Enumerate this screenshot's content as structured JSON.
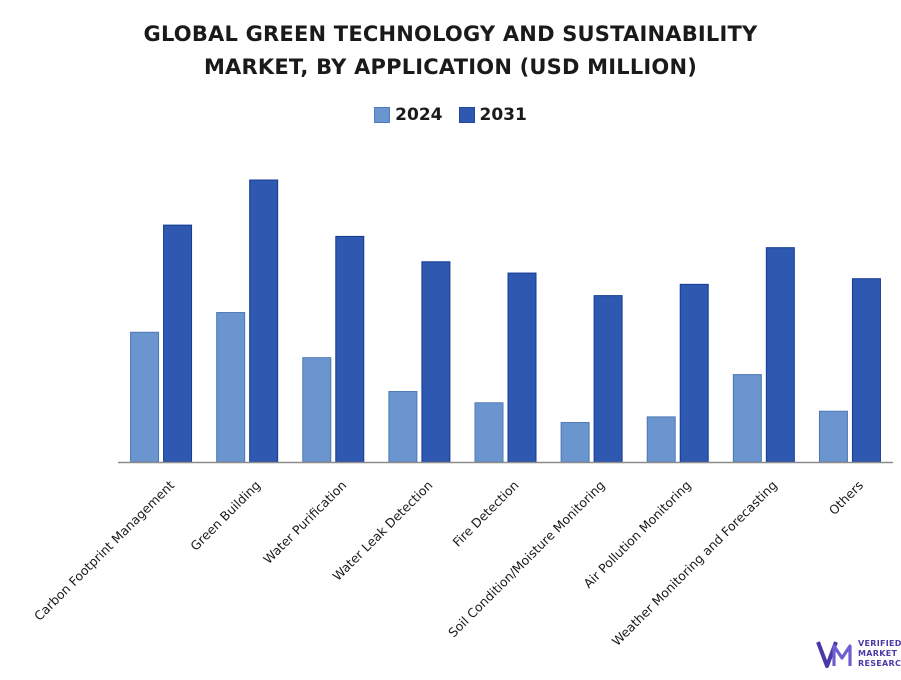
{
  "chart_data": {
    "type": "bar",
    "title_line1": "GLOBAL GREEN TECHNOLOGY AND SUSTAINABILITY",
    "title_line2": "MARKET, BY APPLICATION (USD MILLION)",
    "xlabel": "",
    "ylabel": "",
    "grid": false,
    "legend_position": "top-center",
    "ylim": [
      0,
      100
    ],
    "categories": [
      "Carbon Footprint Management",
      "Green Building",
      "Water Purification",
      "Water Leak Detection",
      "Fire Detection",
      "Soil Condition/Moisture Monitoring",
      "Air Pollution Monitoring",
      "Weather Monitoring and Forecasting",
      "Others"
    ],
    "series": [
      {
        "name": "2024",
        "color": "#6a95cf",
        "values": [
          46,
          53,
          37,
          25,
          21,
          14,
          16,
          31,
          18
        ]
      },
      {
        "name": "2031",
        "color": "#2f58b0",
        "values": [
          84,
          100,
          80,
          71,
          67,
          59,
          63,
          76,
          65
        ]
      }
    ]
  },
  "branding": {
    "line1": "VERIFIED",
    "line2": "MARKET",
    "line3": "RESEARCH",
    "color": "#4a3aa8"
  }
}
